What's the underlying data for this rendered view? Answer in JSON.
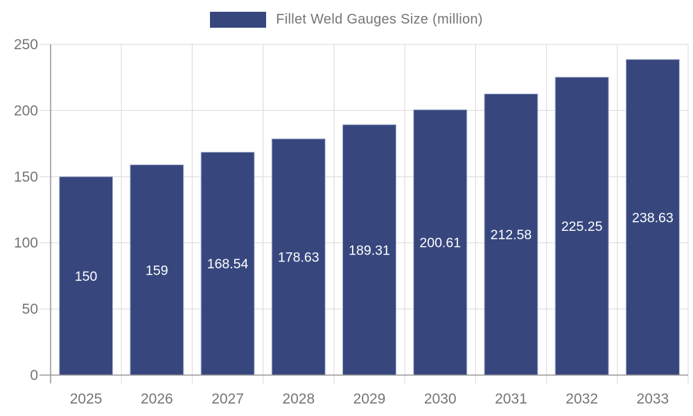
{
  "legend": {
    "label": "Fillet Weld Gauges Size (million)"
  },
  "chart_data": {
    "type": "bar",
    "title": "Fillet Weld Gauges Size (million)",
    "categories": [
      "2025",
      "2026",
      "2027",
      "2028",
      "2029",
      "2030",
      "2031",
      "2032",
      "2033"
    ],
    "values": [
      150,
      159,
      168.54,
      178.63,
      189.31,
      200.61,
      212.58,
      225.25,
      238.63
    ],
    "value_labels": [
      "150",
      "159",
      "168.54",
      "178.63",
      "189.31",
      "200.61",
      "212.58",
      "225.25",
      "238.63"
    ],
    "xlabel": "",
    "ylabel": "",
    "ylim": [
      0,
      250
    ],
    "yticks": [
      0,
      50,
      100,
      150,
      200,
      250
    ],
    "grid": true,
    "legend_position": "top-center",
    "colors": {
      "bar_fill": "#37477E",
      "bar_stroke": "#B7BFD8",
      "bar_label": "#FFFFFF",
      "axis_text": "#757575",
      "grid_line": "#E0E0E0",
      "axis_line": "#999999",
      "background": "#FFFFFF"
    }
  }
}
